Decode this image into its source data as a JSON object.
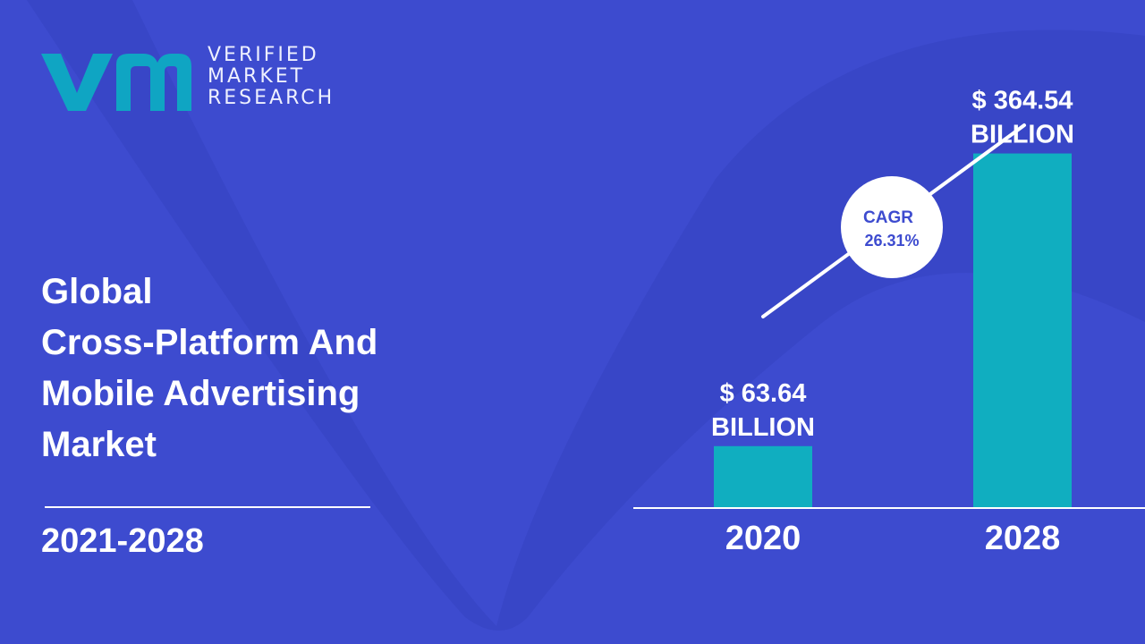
{
  "brand": {
    "lines": [
      "VERIFIED",
      "MARKET",
      "RESEARCH"
    ],
    "colors": {
      "teal": "#0fa5c3",
      "background": "#3d4bcf",
      "bar": "#10aec0"
    }
  },
  "title_lines": [
    "Global",
    "Cross-Platform And",
    "Mobile Advertising",
    "Market"
  ],
  "period": "2021-2028",
  "chart_data": {
    "type": "bar",
    "categories": [
      "2020",
      "2028"
    ],
    "values": [
      63.64,
      364.54
    ],
    "value_labels": [
      [
        "$ 63.64",
        "BILLION"
      ],
      [
        "$ 364.54",
        "BILLION"
      ]
    ],
    "unit": "USD Billion",
    "cagr": {
      "label": "CAGR",
      "value": "26.31%"
    },
    "ylim": [
      0,
      480
    ],
    "grid": false,
    "legend": "none"
  }
}
